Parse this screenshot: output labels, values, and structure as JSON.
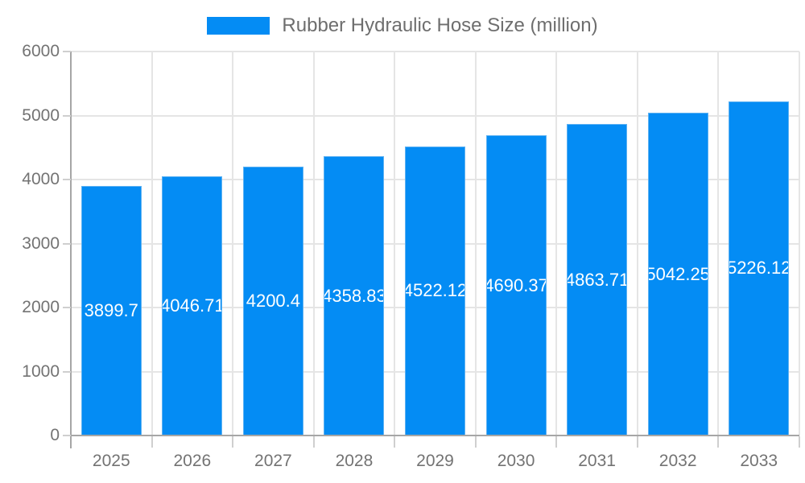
{
  "legend": {
    "label": "Rubber Hydraulic Hose Size (million)"
  },
  "colors": {
    "bar_fill": "#048cf4",
    "bar_border": "#5fb2f2",
    "grid": "#e5e5e5",
    "axis": "#a6a6a6",
    "tick_text": "#737373",
    "legend_text": "#6e6e6e",
    "bar_label_text": "#ffffff"
  },
  "chart_data": {
    "type": "bar",
    "title": "Rubber Hydraulic Hose Size (million)",
    "legend_position": "top-center",
    "grid": "on",
    "categories": [
      "2025",
      "2026",
      "2027",
      "2028",
      "2029",
      "2030",
      "2031",
      "2032",
      "2033"
    ],
    "values": [
      3899.7,
      4046.71,
      4200.4,
      4358.83,
      4522.12,
      4690.37,
      4863.71,
      5042.25,
      5226.12
    ],
    "bar_labels": [
      "3899.7",
      "4046.71",
      "4200.4",
      "4358.83",
      "4522.12",
      "4690.37",
      "4863.71",
      "5042.25",
      "5226.12"
    ],
    "xlabel": "",
    "ylabel": "",
    "ylim": [
      0,
      6000
    ],
    "ytick_values": [
      0,
      1000,
      2000,
      3000,
      4000,
      5000,
      6000
    ],
    "ytick_labels": [
      "0",
      "1000",
      "2000",
      "3000",
      "4000",
      "5000",
      "6000"
    ]
  }
}
